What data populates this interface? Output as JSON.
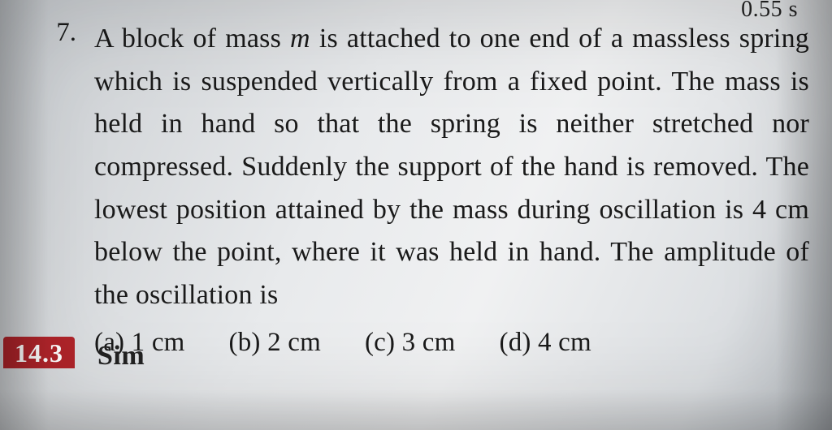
{
  "fragments": {
    "top_right": "0.55 s",
    "bottom_left_box": "14.3",
    "bottom_left_text": "Sim"
  },
  "question": {
    "number": "7.",
    "text_parts": {
      "p1": "A block of mass ",
      "var_m": "m",
      "p2": " is attached to one end of a massless spring which is suspended vertically from a fixed point. The mass is held in hand so that the spring is neither stretched nor compressed. Suddenly the support of the hand is removed. The lowest position attained by the mass during oscillation is 4 cm below the point, where it was held in hand. The amplitude of the oscillation is"
    },
    "options": {
      "a": "(a)  1 cm",
      "b": "(b)  2 cm",
      "c": "(c)  3 cm",
      "d": "(d)  4 cm"
    }
  }
}
